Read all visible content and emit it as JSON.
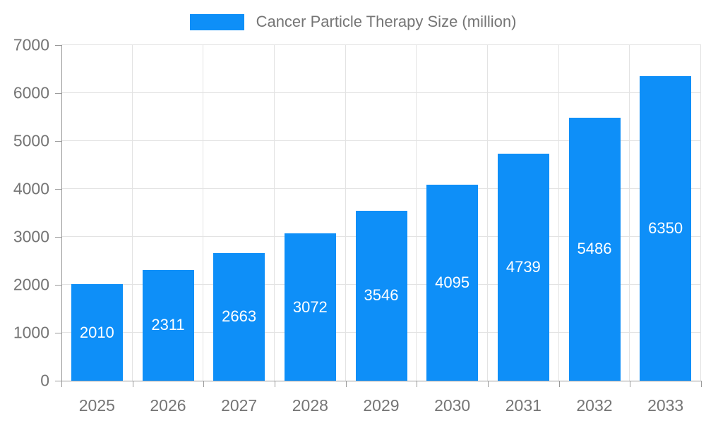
{
  "legend": {
    "label": "Cancer Particle Therapy Size (million)"
  },
  "chart_data": {
    "type": "bar",
    "title": "Cancer Particle Therapy Size (million)",
    "categories": [
      "2025",
      "2026",
      "2027",
      "2028",
      "2029",
      "2030",
      "2031",
      "2032",
      "2033"
    ],
    "series": [
      {
        "name": "Cancer Particle Therapy Size (million)",
        "values": [
          2010,
          2311,
          2663,
          3072,
          3546,
          4095,
          4739,
          5486,
          6350
        ]
      }
    ],
    "values": [
      2010,
      2311,
      2663,
      3072,
      3546,
      4095,
      4739,
      5486,
      6350
    ],
    "bar_labels": [
      "2010",
      "2311",
      "2663",
      "3072",
      "3546",
      "4095",
      "4739",
      "5486",
      "6350"
    ],
    "xlabel": "",
    "ylabel": "",
    "ylim": [
      0,
      7000
    ],
    "yticks": [
      0,
      1000,
      2000,
      3000,
      4000,
      5000,
      6000,
      7000
    ],
    "grid": true,
    "legend_position": "top-center",
    "colors": {
      "bar": "#0e8ff8",
      "bar_label": "#ffffff",
      "axis_text": "#757575",
      "axis_line": "#999999",
      "gridline": "#e3e3e3",
      "background": "#ffffff"
    }
  }
}
